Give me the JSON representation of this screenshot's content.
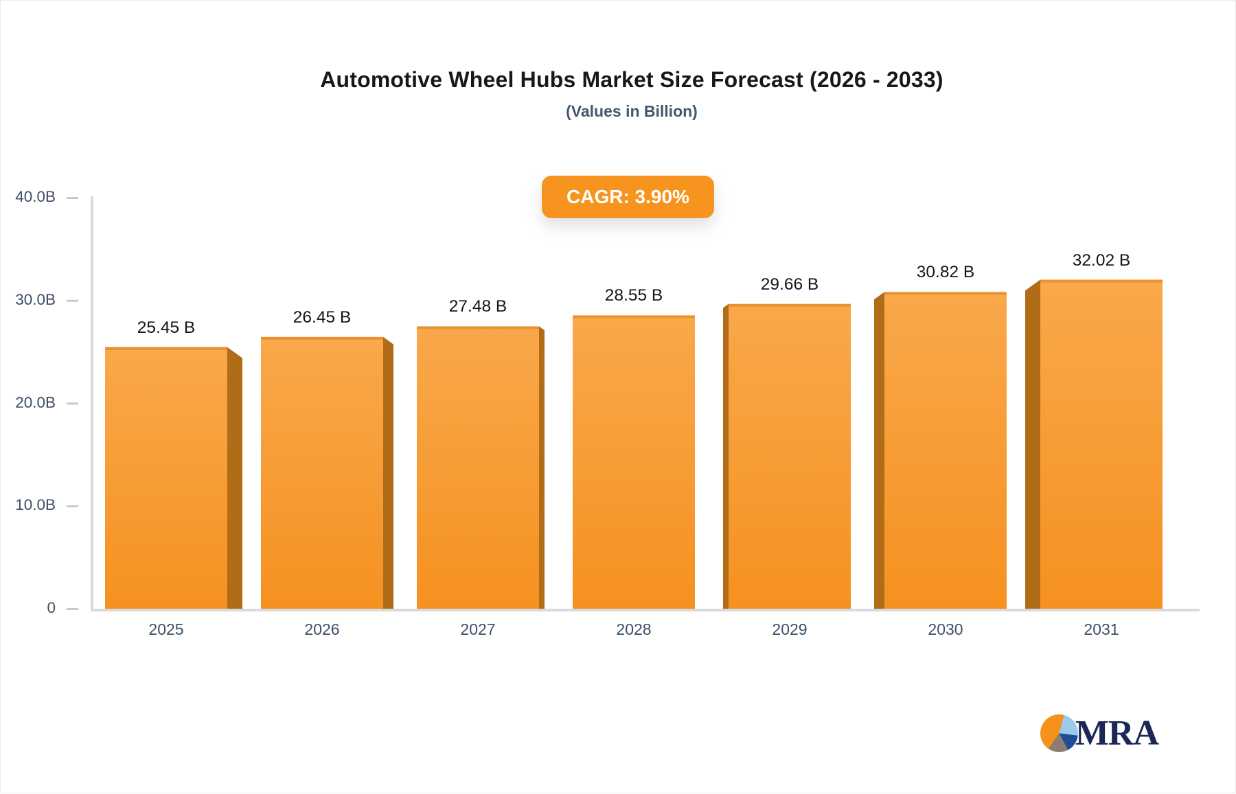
{
  "header": {
    "title": "Automotive Wheel Hubs Market Size Forecast (2026 - 2033)",
    "subtitle": "(Values in Billion)",
    "cagr_label": "CAGR: 3.90%"
  },
  "chart_data": {
    "type": "bar",
    "title": "Automotive Wheel Hubs Market Size Forecast (2026 - 2033)",
    "subtitle": "(Values in Billion)",
    "cagr_percent": "3.90%",
    "categories": [
      "2025",
      "2026",
      "2027",
      "2028",
      "2029",
      "2030",
      "2031"
    ],
    "values": [
      25.45,
      26.45,
      27.48,
      28.55,
      29.66,
      30.82,
      32.02
    ],
    "value_labels": [
      "25.45 B",
      "26.45 B",
      "27.48 B",
      "28.55 B",
      "29.66 B",
      "30.82 B",
      "32.02 B"
    ],
    "unit": "Billion",
    "ylim": [
      0,
      40
    ],
    "yticks": [
      {
        "value": 0,
        "label": "0"
      },
      {
        "value": 10,
        "label": "10.0B"
      },
      {
        "value": 20,
        "label": "20.0B"
      },
      {
        "value": 30,
        "label": "30.0B"
      },
      {
        "value": 40,
        "label": "40.0B"
      }
    ],
    "grid": false,
    "legend": false,
    "style_3d": true,
    "colors": {
      "bar_top": "#f9a84b",
      "bar_bottom": "#f59120",
      "bar_edge": "#ea9231",
      "bar_side": "#b16c18",
      "axis_line": "#d8dade",
      "tick_dash": "#c4cad3",
      "accent_orange": "#f7941f",
      "label_text": "#3e4e66",
      "value_text": "#141619"
    }
  },
  "logo": {
    "text": "MRA",
    "navy": "#1b2756",
    "pie_orange": "#f5921e",
    "pie_lightblue": "#9cc9ec",
    "pie_navy": "#1e4d95",
    "pie_gray": "#8d7d70"
  }
}
